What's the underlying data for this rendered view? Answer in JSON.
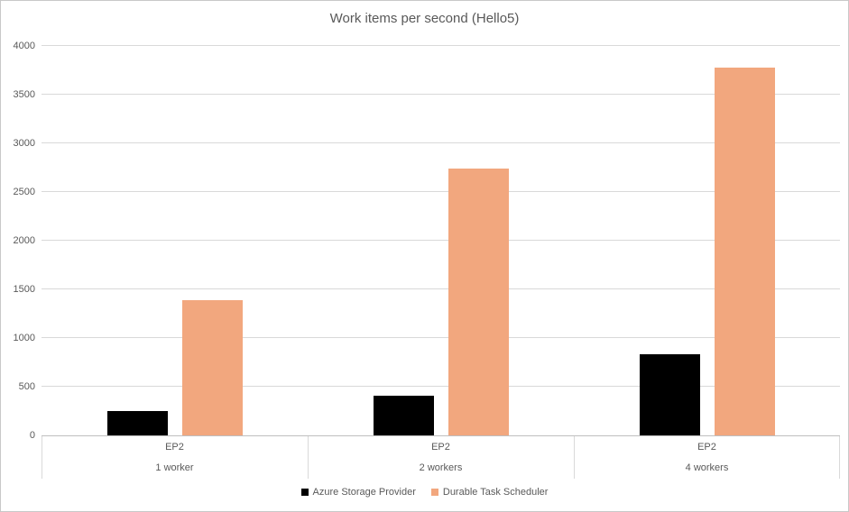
{
  "chart_data": {
    "type": "bar",
    "title": "Work items per second (Hello5)",
    "groups": [
      {
        "instance": "EP2",
        "workers": "1 worker"
      },
      {
        "instance": "EP2",
        "workers": "2 workers"
      },
      {
        "instance": "EP2",
        "workers": "4 workers"
      }
    ],
    "series": [
      {
        "name": "Azure Storage Provider",
        "color": "#000000",
        "values": [
          250,
          410,
          830
        ]
      },
      {
        "name": "Durable Task Scheduler",
        "color": "#F2A77E",
        "values": [
          1390,
          2740,
          3775
        ]
      }
    ],
    "ylim": [
      0,
      4000
    ],
    "yticks": [
      0,
      500,
      1000,
      1500,
      2000,
      2500,
      3000,
      3500,
      4000
    ],
    "grid": true,
    "legend_position": "bottom",
    "xlabel": "",
    "ylabel": ""
  },
  "colors": {
    "gridline": "#D9D9D9",
    "axis_line": "#BFBFBF",
    "text": "#595959",
    "frame_border": "#C8C8C8"
  }
}
